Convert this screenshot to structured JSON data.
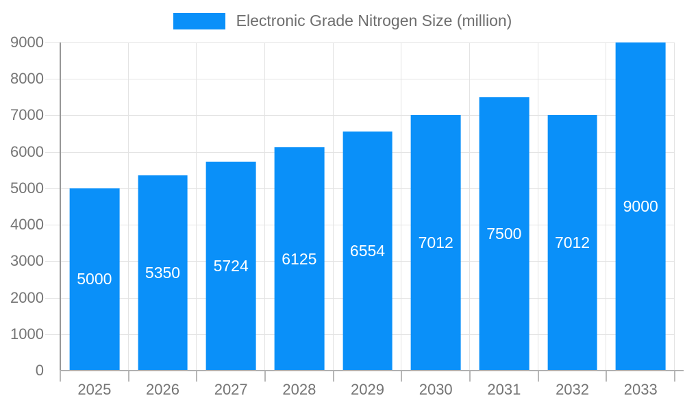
{
  "chart_data": {
    "type": "bar",
    "title": "Electronic Grade Nitrogen Size (million)",
    "categories": [
      "2025",
      "2026",
      "2027",
      "2028",
      "2029",
      "2030",
      "2031",
      "2032",
      "2033"
    ],
    "values": [
      5000,
      5350,
      5724,
      6125,
      6554,
      7012,
      7500,
      7012,
      9000
    ],
    "value_labels": [
      "5000",
      "5350",
      "5724",
      "6125",
      "6554",
      "7012",
      "7500",
      "7012",
      "9000"
    ],
    "xlabel": "",
    "ylabel": "",
    "ylim": [
      0,
      9000
    ],
    "ytick_step": 1000,
    "yticks": [
      0,
      1000,
      2000,
      3000,
      4000,
      5000,
      6000,
      7000,
      8000,
      9000
    ],
    "grid": true,
    "legend_position": "top",
    "show_value_labels": true,
    "value_label_position": "center-of-bar"
  },
  "legend": {
    "label": "Electronic Grade Nitrogen Size (million)",
    "swatch_color": "#0a90f9"
  },
  "colors": {
    "bar": "#0a90f9",
    "value_label": "#ffffff",
    "axis_line": "#9a9a9a",
    "gridline": "#e3e3e3",
    "tick_label": "#757575",
    "legend_text": "#6e6e6e",
    "background": "#ffffff"
  }
}
